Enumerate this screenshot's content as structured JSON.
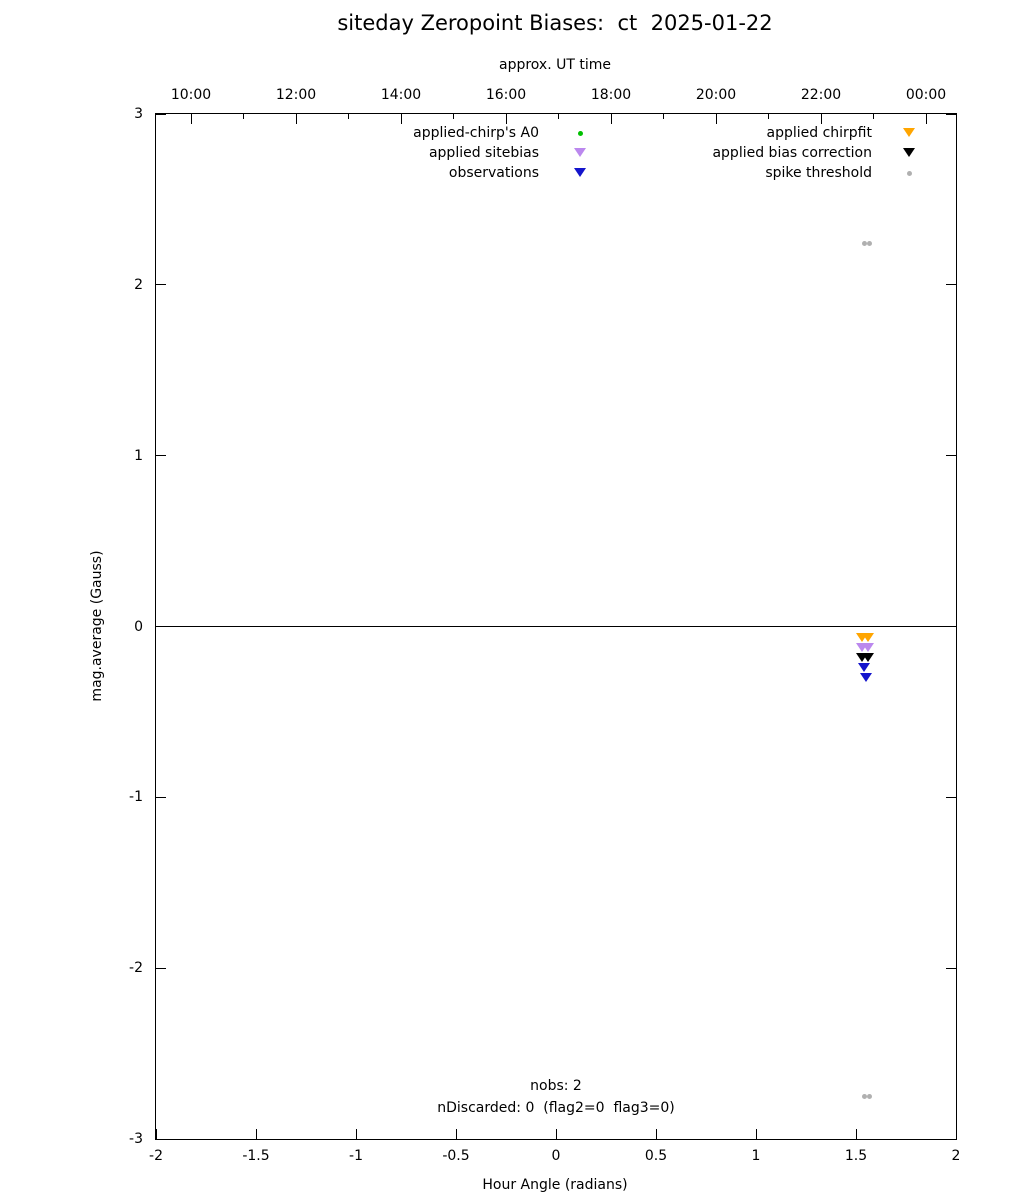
{
  "chart_data": {
    "type": "scatter",
    "title": "siteday Zeropoint Biases:  ct  2025-01-22",
    "x_axis": {
      "label": "Hour Angle (radians)",
      "min": -2,
      "max": 2,
      "ticks": [
        -2,
        -1.5,
        -1,
        -0.5,
        0,
        0.5,
        1,
        1.5,
        2
      ]
    },
    "x2_axis": {
      "label": "approx. UT time",
      "major_ticks": [
        {
          "v": -1.825,
          "label": "10:00"
        },
        {
          "v": -1.3,
          "label": "12:00"
        },
        {
          "v": -0.775,
          "label": "14:00"
        },
        {
          "v": -0.25,
          "label": "16:00"
        },
        {
          "v": 0.275,
          "label": "18:00"
        },
        {
          "v": 0.8,
          "label": "20:00"
        },
        {
          "v": 1.325,
          "label": "22:00"
        },
        {
          "v": 1.85,
          "label": "00:00"
        }
      ],
      "minor_ticks": [
        -1.5625,
        -1.0375,
        -0.5125,
        0.0125,
        0.5375,
        1.0625,
        1.5875
      ]
    },
    "y_axis": {
      "label": "mag.average (Gauss)",
      "min": -3,
      "max": 3,
      "ticks": [
        3,
        2,
        1,
        0,
        -1,
        -2,
        -3
      ],
      "zero_line": true
    },
    "grid": false,
    "series": [
      {
        "name": "applied-chirp's A0",
        "marker": "dot",
        "color": "#00c000",
        "points": []
      },
      {
        "name": "applied sitebias",
        "marker": "triangle-down",
        "color": "#bb88ee",
        "points": [
          [
            1.53,
            -0.125
          ],
          [
            1.56,
            -0.125
          ]
        ]
      },
      {
        "name": "observations",
        "marker": "triangle-down",
        "color": "#1414cc",
        "points": [
          [
            1.54,
            -0.24
          ],
          [
            1.55,
            -0.3
          ]
        ]
      },
      {
        "name": "applied chirpfit",
        "marker": "triangle-down",
        "color": "#ffa500",
        "points": [
          [
            1.53,
            -0.07
          ],
          [
            1.56,
            -0.07
          ]
        ]
      },
      {
        "name": "applied bias correction",
        "marker": "triangle-down",
        "color": "#000000",
        "points": [
          [
            1.53,
            -0.185
          ],
          [
            1.56,
            -0.185
          ]
        ]
      },
      {
        "name": "spike threshold",
        "marker": "dot",
        "color": "#b0b0b0",
        "points": [
          [
            1.54,
            2.24
          ],
          [
            1.565,
            2.24
          ],
          [
            1.54,
            -2.75
          ],
          [
            1.565,
            -2.75
          ]
        ]
      }
    ],
    "legend_columns": [
      [
        0,
        1,
        2
      ],
      [
        3,
        4,
        5
      ]
    ],
    "annotations": [
      {
        "text": "nobs: 2",
        "x": 0,
        "y": -2.69
      },
      {
        "text": "nDiscarded: 0  (flag2=0  flag3=0)",
        "x": 0,
        "y": -2.82
      }
    ]
  }
}
